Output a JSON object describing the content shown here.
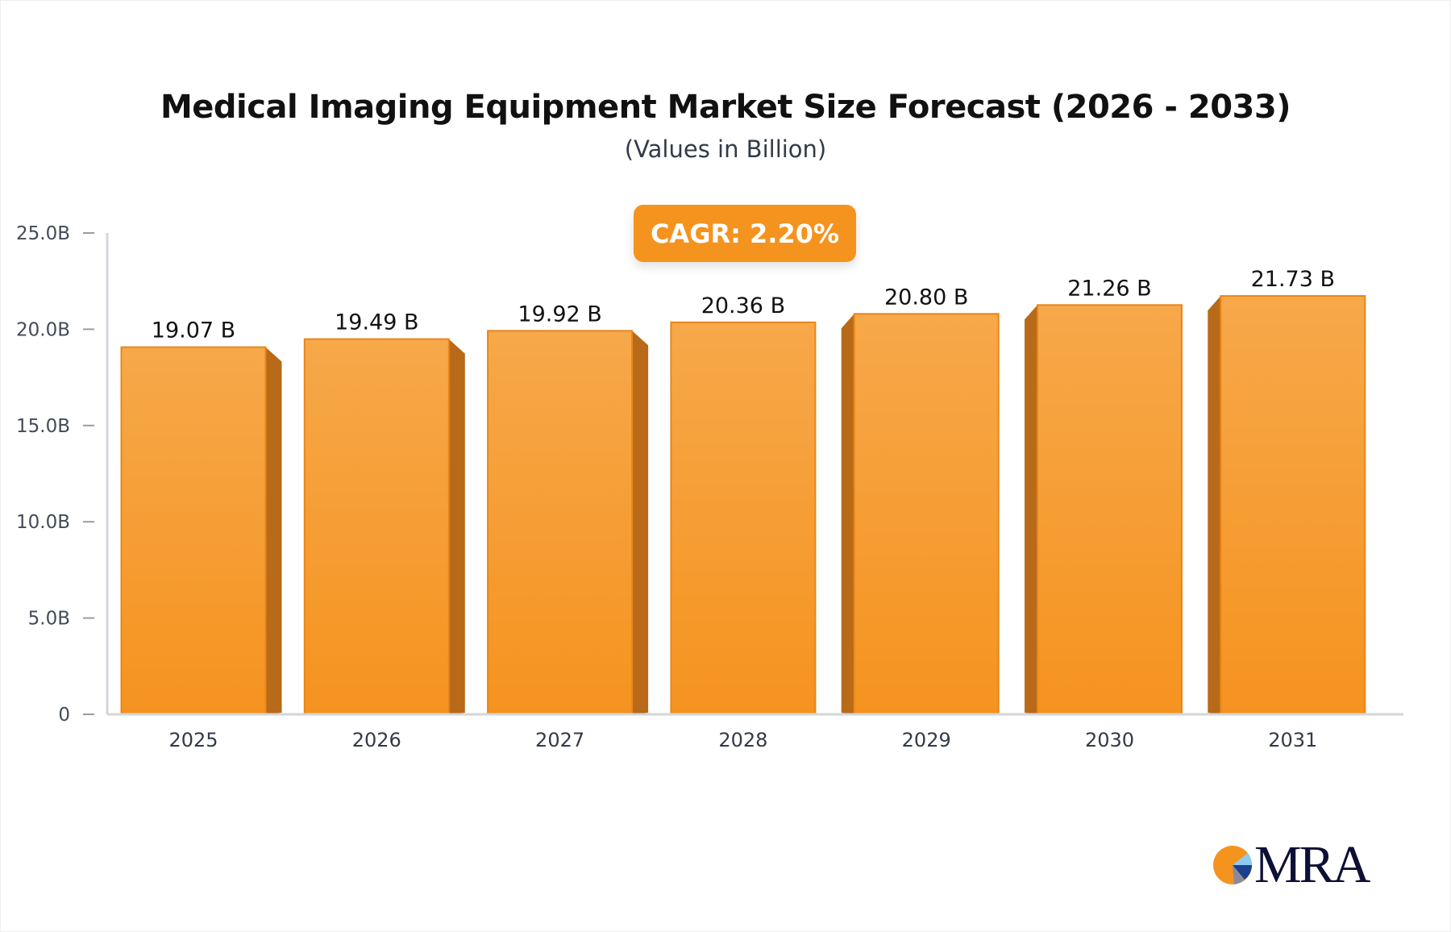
{
  "chart_data": {
    "type": "bar",
    "title": "Medical Imaging Equipment Market Size Forecast (2026 - 2033)",
    "subtitle": "(Values in Billion)",
    "annotation": "CAGR: 2.20%",
    "categories": [
      "2025",
      "2026",
      "2027",
      "2028",
      "2029",
      "2030",
      "2031"
    ],
    "values": [
      19.07,
      19.49,
      19.92,
      20.36,
      20.8,
      21.26,
      21.73
    ],
    "data_labels": [
      "19.07 B",
      "19.49 B",
      "19.92 B",
      "20.36 B",
      "20.80 B",
      "21.26 B",
      "21.73 B"
    ],
    "ylim": [
      0,
      25
    ],
    "yticks": [
      0,
      5,
      10,
      15,
      20,
      25
    ],
    "ytick_labels": [
      "0",
      "5.0B",
      "10.0B",
      "15.0B",
      "20.0B",
      "25.0B"
    ],
    "xlabel": "",
    "ylabel": "",
    "grid": false,
    "bar_color": "#f5931f",
    "bar_side_color": "#b86a18"
  },
  "logo": {
    "text": "MRA"
  }
}
